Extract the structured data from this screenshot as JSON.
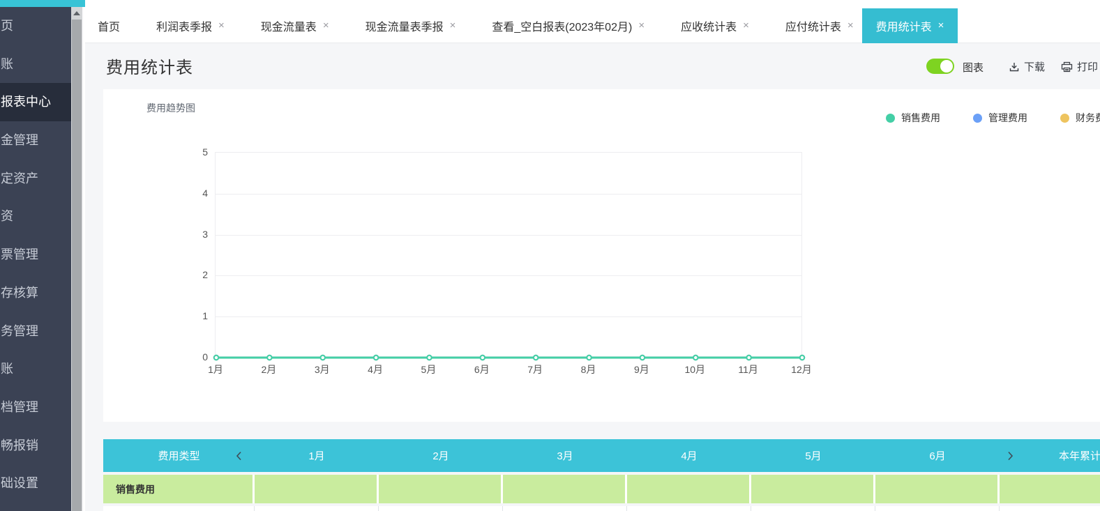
{
  "colors": {
    "top_strip": "#38c3d6",
    "sidebar_bg": "#3b4254",
    "sidebar_active_bg": "#272d3b",
    "tab_active_bg": "#35bdd1",
    "table_header_bg": "#3cc3d8",
    "row_green_bg": "#c9ec9e",
    "toggle_green": "#7ed321",
    "line_color": "#44cfa6"
  },
  "sidebar": {
    "active_index": 2,
    "items": [
      "页",
      "账",
      "报表中心",
      "金管理",
      "定资产",
      "资",
      "票管理",
      "存核算",
      "务管理",
      "账",
      "档管理",
      "畅报销",
      "础设置"
    ]
  },
  "tabs": {
    "close_glyph": "×",
    "items": [
      {
        "label": "首页",
        "closable": false,
        "active": false
      },
      {
        "label": "利润表季报",
        "closable": true,
        "active": false
      },
      {
        "label": "现金流量表",
        "closable": true,
        "active": false
      },
      {
        "label": "现金流量表季报",
        "closable": true,
        "active": false
      },
      {
        "label": "查看_空白报表(2023年02月)",
        "closable": true,
        "active": false
      },
      {
        "label": "应收统计表",
        "closable": true,
        "active": false
      },
      {
        "label": "应付统计表",
        "closable": true,
        "active": false
      },
      {
        "label": "费用统计表",
        "closable": true,
        "active": true
      }
    ]
  },
  "page": {
    "title": "费用统计表"
  },
  "toolbar": {
    "chart_toggle_label": "图表",
    "toggle_on": true,
    "download_label": "下载",
    "print_label": "打印"
  },
  "chart_data": {
    "type": "line",
    "title": "费用趋势图",
    "categories": [
      "1月",
      "2月",
      "3月",
      "4月",
      "5月",
      "6月",
      "7月",
      "8月",
      "9月",
      "10月",
      "11月",
      "12月"
    ],
    "series": [
      {
        "name": "销售费用",
        "color": "#44cfa6",
        "values": [
          0,
          0,
          0,
          0,
          0,
          0,
          0,
          0,
          0,
          0,
          0,
          0
        ]
      },
      {
        "name": "管理费用",
        "color": "#6ba0f7",
        "values": [
          0,
          0,
          0,
          0,
          0,
          0,
          0,
          0,
          0,
          0,
          0,
          0
        ]
      },
      {
        "name": "财务费用",
        "color": "#eec45f",
        "values": [
          0,
          0,
          0,
          0,
          0,
          0,
          0,
          0,
          0,
          0,
          0,
          0
        ]
      }
    ],
    "ylim": [
      0,
      5
    ],
    "yticks": [
      0,
      1,
      2,
      3,
      4,
      5
    ],
    "grid": true,
    "legend_position": "top-right"
  },
  "table": {
    "header": {
      "expense_type": "费用类型",
      "months": [
        "1月",
        "2月",
        "3月",
        "4月",
        "5月",
        "6月"
      ],
      "ytd": "本年累计"
    },
    "rows": [
      {
        "type": "销售费用",
        "values": [
          "",
          "",
          "",
          "",
          "",
          "",
          ""
        ]
      }
    ]
  }
}
